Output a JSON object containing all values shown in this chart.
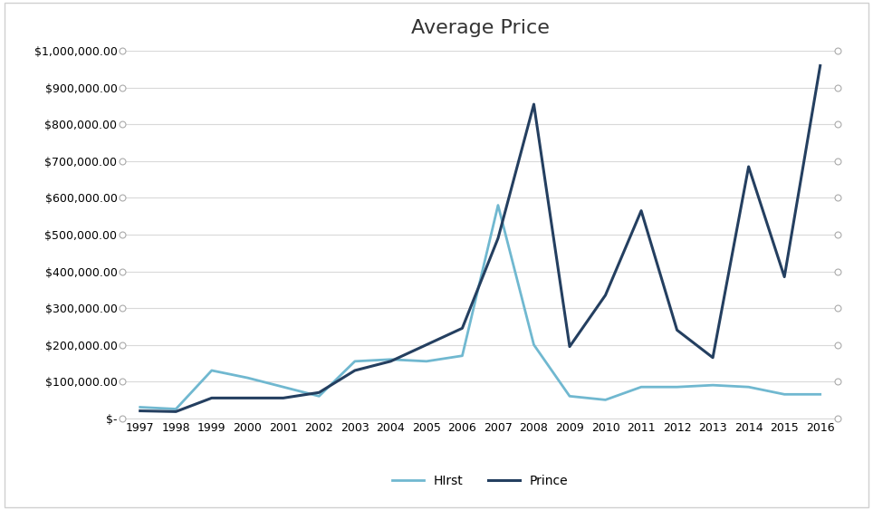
{
  "title": "Average Price",
  "years": [
    1997,
    1998,
    1999,
    2000,
    2001,
    2002,
    2003,
    2004,
    2005,
    2006,
    2007,
    2008,
    2009,
    2010,
    2011,
    2012,
    2013,
    2014,
    2015,
    2016
  ],
  "hirst": [
    30000,
    25000,
    130000,
    110000,
    85000,
    60000,
    155000,
    160000,
    155000,
    170000,
    580000,
    200000,
    60000,
    50000,
    85000,
    85000,
    90000,
    85000,
    65000,
    65000
  ],
  "prince": [
    20000,
    18000,
    55000,
    55000,
    55000,
    70000,
    130000,
    155000,
    200000,
    245000,
    490000,
    855000,
    195000,
    335000,
    565000,
    240000,
    165000,
    685000,
    385000,
    960000
  ],
  "hirst_color": "#70B8D0",
  "prince_color": "#243F60",
  "background_color": "#FFFFFF",
  "outer_border_color": "#D0D0D0",
  "grid_color": "#D9D9D9",
  "circle_color": "#AAAAAA",
  "ylim": [
    0,
    1000000
  ],
  "ytick_step": 100000,
  "legend_labels": [
    "HIrst",
    "Prince"
  ],
  "title_fontsize": 16,
  "axis_fontsize": 9
}
